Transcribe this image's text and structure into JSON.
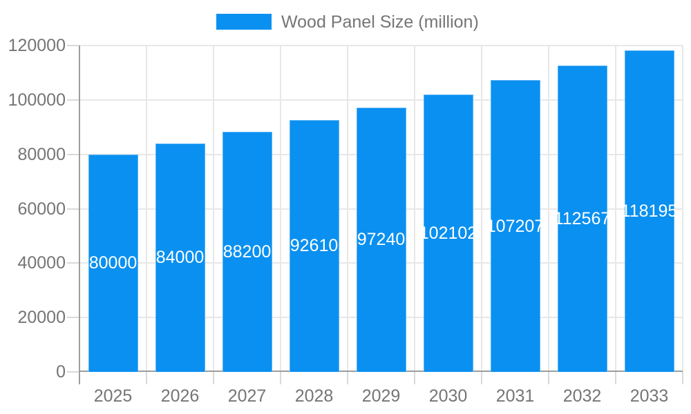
{
  "chart_data": {
    "type": "bar",
    "title": "Wood Panel Size (million)",
    "categories": [
      "2025",
      "2026",
      "2027",
      "2028",
      "2029",
      "2030",
      "2031",
      "2032",
      "2033"
    ],
    "values": [
      80000,
      84000,
      88200,
      92610,
      97240,
      102102,
      107207,
      112567,
      118195
    ],
    "bar_labels": [
      "80000",
      "84000",
      "88200",
      "92610",
      "97240",
      "102102",
      "107207",
      "112567",
      "118195"
    ],
    "yticks": [
      0,
      20000,
      40000,
      60000,
      80000,
      100000,
      120000
    ],
    "ytick_labels": [
      "0",
      "20000",
      "40000",
      "60000",
      "80000",
      "100000",
      "120000"
    ],
    "ylim": [
      0,
      120000
    ],
    "xlabel": "",
    "ylabel": "",
    "legend_position": "top-center",
    "grid": true,
    "bar_label_position": "middle",
    "colors": {
      "bar_fill": "#0a90f0",
      "bar_border": "#5bb5f6",
      "bar_label_text": "#ffffff",
      "axis_text": "#757575",
      "legend_text": "#757575",
      "gridline": "#e7e7e7",
      "tick": "#d9d9d9",
      "axis_line": "#9d9d9d",
      "background": "#ffffff"
    }
  }
}
